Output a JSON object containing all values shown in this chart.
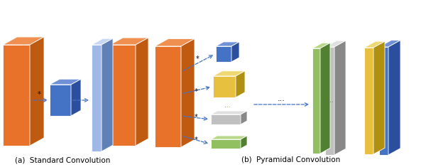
{
  "bg_color": "#ffffff",
  "orange_color": "#E8722A",
  "orange_dark": "#C05A10",
  "orange_top": "#F09050",
  "blue_color": "#4472C4",
  "blue_dark": "#2B4F9E",
  "blue_top": "#7090D8",
  "lightblue_color": "#A0B8E8",
  "lightblue_dark": "#6080B8",
  "lightblue_top": "#C8D8F4",
  "yellow_color": "#E8C040",
  "yellow_dark": "#B09010",
  "yellow_top": "#F0D870",
  "gray_color": "#C0C0C0",
  "gray_dark": "#888888",
  "gray_top": "#E0E0E0",
  "green_color": "#90C060",
  "green_dark": "#508030",
  "green_top": "#B8D888",
  "arrow_color": "#4472C4",
  "label_a": "(a)  Standard Convolution",
  "label_b": "(b)  Pyramidal Convolution",
  "dots": "...",
  "star": "*"
}
